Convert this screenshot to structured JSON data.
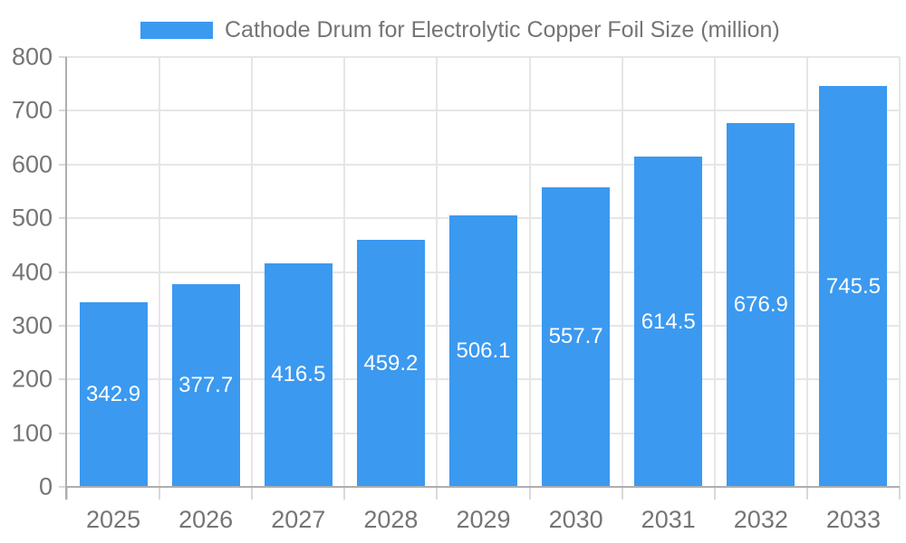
{
  "chart_data": {
    "type": "bar",
    "title": "Cathode Drum for Electrolytic Copper Foil Size (million)",
    "categories": [
      "2025",
      "2026",
      "2027",
      "2028",
      "2029",
      "2030",
      "2031",
      "2032",
      "2033"
    ],
    "values": [
      342.9,
      377.7,
      416.5,
      459.2,
      506.1,
      557.7,
      614.5,
      676.9,
      745.5
    ],
    "value_labels": [
      "342.9",
      "377.7",
      "416.5",
      "459.2",
      "506.1",
      "557.7",
      "614.5",
      "676.9",
      "745.5"
    ],
    "xlabel": "",
    "ylabel": "",
    "ylim": [
      0,
      800
    ],
    "yticks": [
      "0",
      "100",
      "200",
      "300",
      "400",
      "500",
      "600",
      "700",
      "800"
    ],
    "grid": true,
    "legend_position": "top",
    "value_label_position": "inside-center"
  },
  "colors": {
    "bar": "#3B99F0",
    "grid": "#e6e6e6",
    "axis": "#aeaeae",
    "tick": "#d9d9d9",
    "text": "#757575",
    "value_label": "#ffffff",
    "background": "#ffffff"
  }
}
